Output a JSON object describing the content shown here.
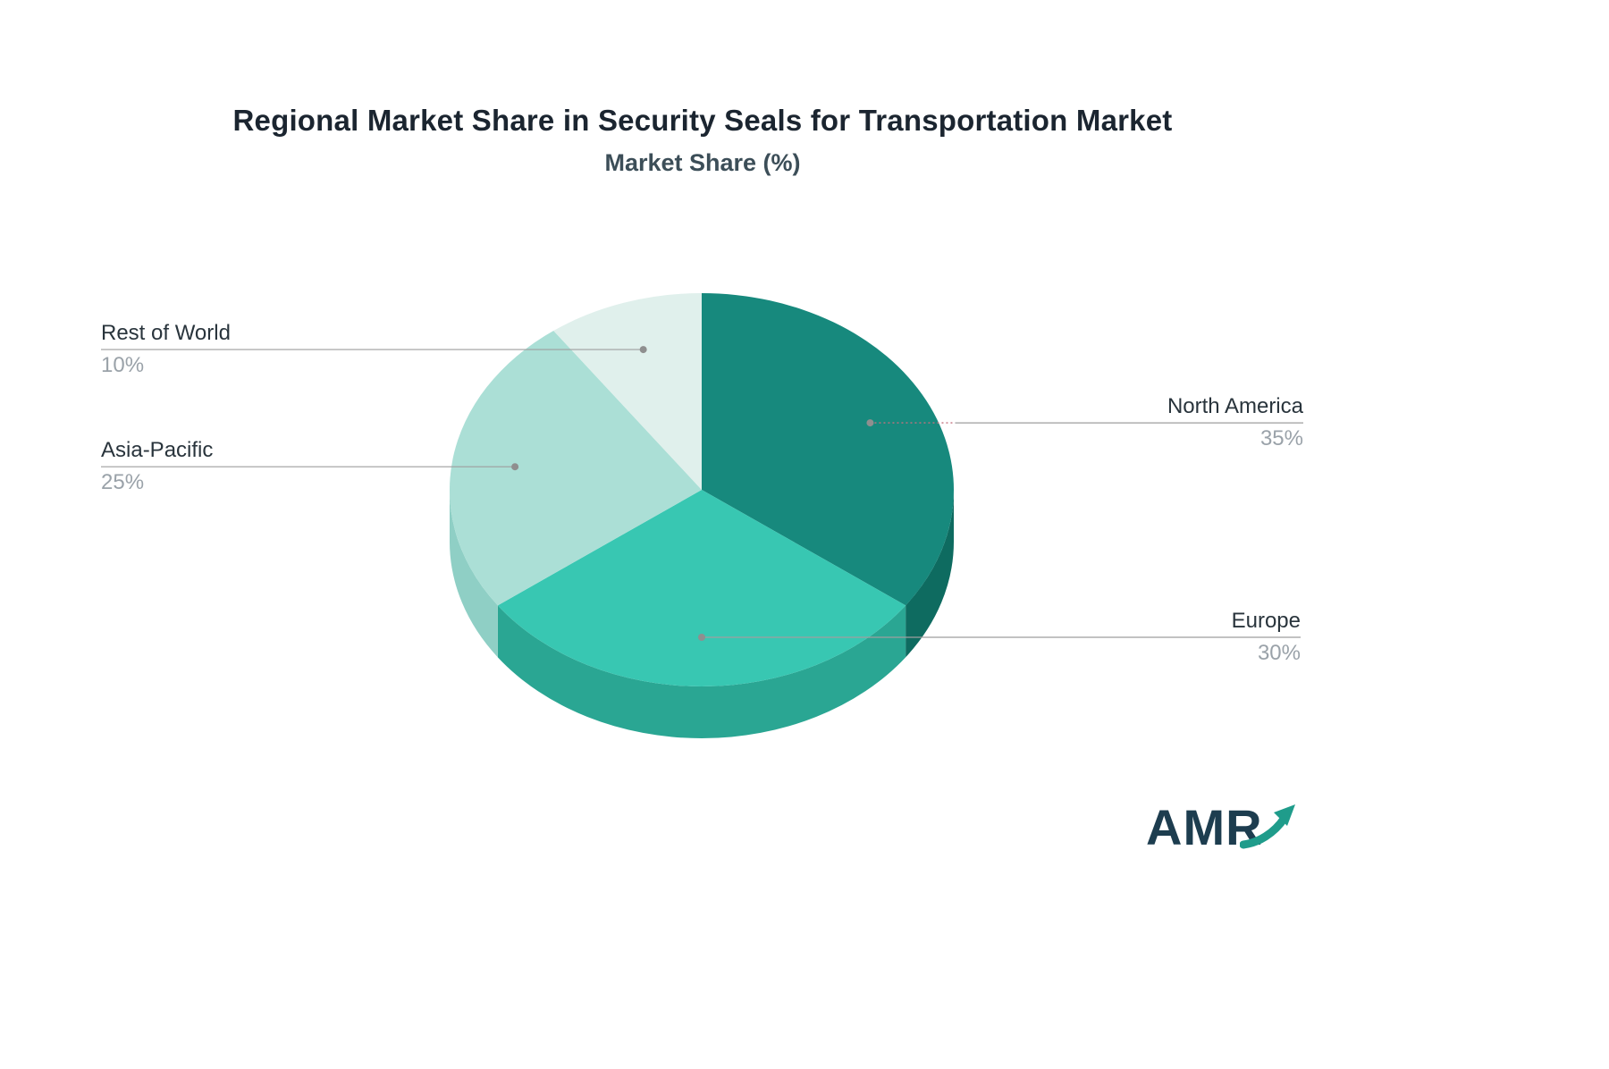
{
  "branding": {
    "logo_text": "AMR",
    "logo_color": "#1d3d4f",
    "arrow_color": "#1f9c8b"
  },
  "chart_data": {
    "type": "pie",
    "style": "3d",
    "title": "Regional Market Share in Security Seals for Transportation Market",
    "subtitle": "Market Share (%)",
    "unit": "%",
    "labels": [
      "North America",
      "Europe",
      "Asia-Pacific",
      "Rest of World"
    ],
    "values": [
      35,
      30,
      25,
      10
    ],
    "value_labels": [
      "35%",
      "30%",
      "25%",
      "10%"
    ],
    "colors": [
      "#17897d",
      "#38c7b2",
      "#abdfd6",
      "#e0f0ec"
    ],
    "depth_colors": [
      "#0e6b60",
      "#2aa693",
      "#8fcfc5",
      "#c9e3de"
    ],
    "start_angle_deg": 0,
    "direction": "clockwise",
    "legend_position": "none",
    "callout_sides": [
      "right",
      "right",
      "left",
      "left"
    ],
    "leader_line_color": "#9e9e9e",
    "leader_dot_color": "#8f8f8f"
  }
}
